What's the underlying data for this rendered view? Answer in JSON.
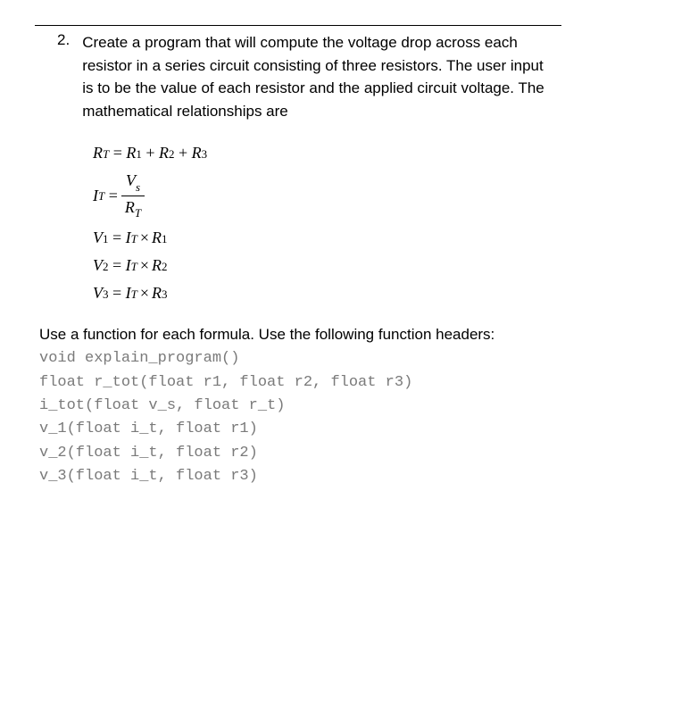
{
  "problem": {
    "number": "2.",
    "text": "Create a program that will compute the voltage drop across each resistor in a series circuit consisting of three resistors. The user input is to be the value of each resistor and the applied circuit voltage. The mathematical relationships are"
  },
  "formulas": {
    "rt_lhs_var": "R",
    "rt_lhs_sub": "T",
    "eq": "=",
    "r1_var": "R",
    "r1_sub": "1",
    "plus": "+",
    "r2_var": "R",
    "r2_sub": "2",
    "r3_var": "R",
    "r3_sub": "3",
    "it_var": "I",
    "it_sub": "T",
    "vs_var": "V",
    "vs_sub": "s",
    "v1_var": "V",
    "v1_sub": "1",
    "v2_var": "V",
    "v2_sub": "2",
    "v3_var": "V",
    "v3_sub": "3",
    "times": "×"
  },
  "instruction": "Use a function for each formula. Use the following function headers:",
  "code": {
    "line1": "void explain_program()",
    "line2": "float r_tot(float r1, float r2, float r3)",
    "line3": "i_tot(float v_s, float r_t)",
    "line4": "v_1(float i_t, float r1)",
    "line5": "v_2(float i_t, float r2)",
    "line6": "v_3(float i_t, float r3)"
  }
}
